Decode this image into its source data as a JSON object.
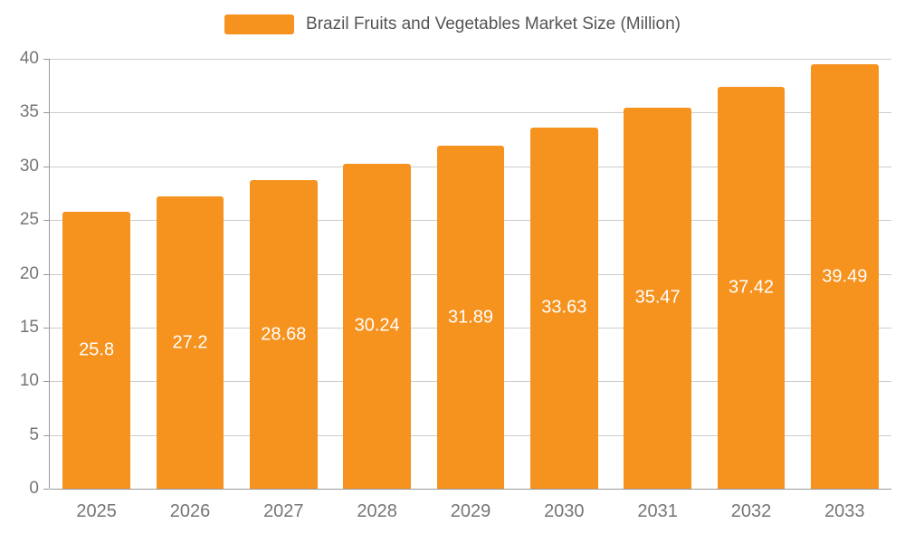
{
  "chart_data": {
    "type": "bar",
    "title": "Brazil Fruits and Vegetables Market Size (Million)",
    "categories": [
      "2025",
      "2026",
      "2027",
      "2028",
      "2029",
      "2030",
      "2031",
      "2032",
      "2033"
    ],
    "values": [
      25.8,
      27.2,
      28.68,
      30.24,
      31.89,
      33.63,
      35.47,
      37.42,
      39.49
    ],
    "value_labels": [
      "25.8",
      "27.2",
      "28.68",
      "30.24",
      "31.89",
      "33.63",
      "35.47",
      "37.42",
      "39.49"
    ],
    "xlabel": "",
    "ylabel": "",
    "ylim": [
      0,
      40
    ],
    "yticks": [
      0,
      5,
      10,
      15,
      20,
      25,
      30,
      35,
      40
    ],
    "grid": true,
    "legend_position": "top",
    "colors": {
      "bar": "#F6921E",
      "grid": "#CCCCCC",
      "axis_line": "#999999",
      "axis_text": "#757575",
      "value_label": "#FFFFFF",
      "legend_text": "#555555"
    }
  }
}
